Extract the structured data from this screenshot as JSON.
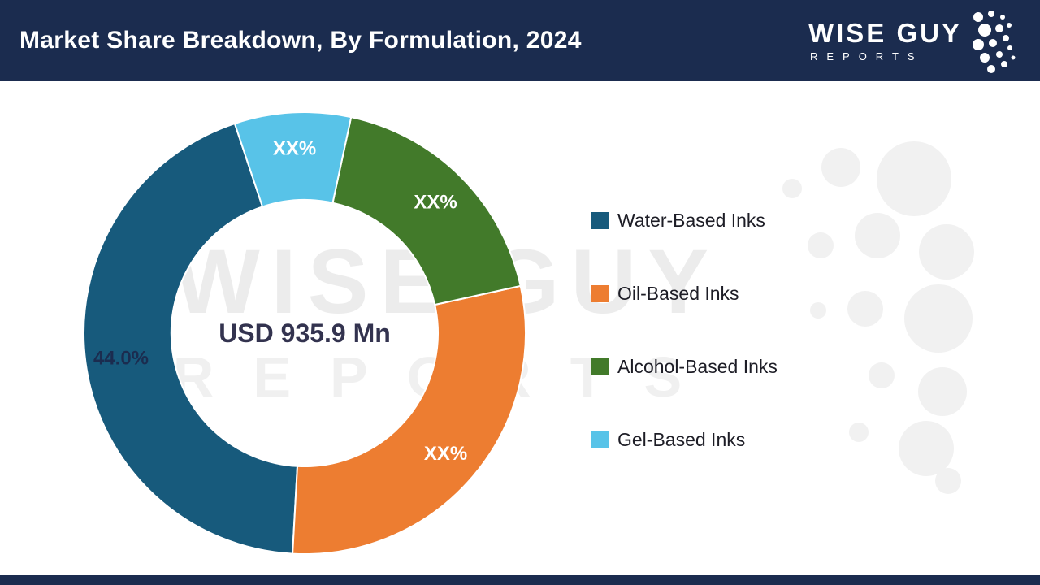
{
  "header": {
    "title": "Market Share Breakdown, By Formulation, 2024",
    "bg_color": "#1b2c4f",
    "logo": {
      "line1": "WISE GUY",
      "line2": "REPORTS"
    }
  },
  "watermark": {
    "line1": "WISE GUY",
    "line2": "REPORTS"
  },
  "chart_data": {
    "type": "pie",
    "subtype": "donut",
    "title": "Market Share Breakdown, By Formulation, 2024",
    "center_label": "USD 935.9 Mn",
    "start_angle_deg": 108.45,
    "direction": "counterclockwise",
    "legend_position": "right",
    "segments": [
      {
        "name": "Water-Based Inks",
        "value": 44.0,
        "label": "44.0%",
        "color": "#175a7c",
        "label_color": "#1b2c4f"
      },
      {
        "name": "Oil-Based Inks",
        "value": 29.3,
        "label": "XX%",
        "color": "#ed7d31",
        "label_color": "#ffffff"
      },
      {
        "name": "Alcohol-Based Inks",
        "value": 18.2,
        "label": "XX%",
        "color": "#427a2a",
        "label_color": "#ffffff"
      },
      {
        "name": "Gel-Based Inks",
        "value": 8.5,
        "label": "XX%",
        "color": "#58c3e8",
        "label_color": "#ffffff"
      }
    ]
  },
  "footer": {
    "bg_color": "#1b2c4f"
  }
}
